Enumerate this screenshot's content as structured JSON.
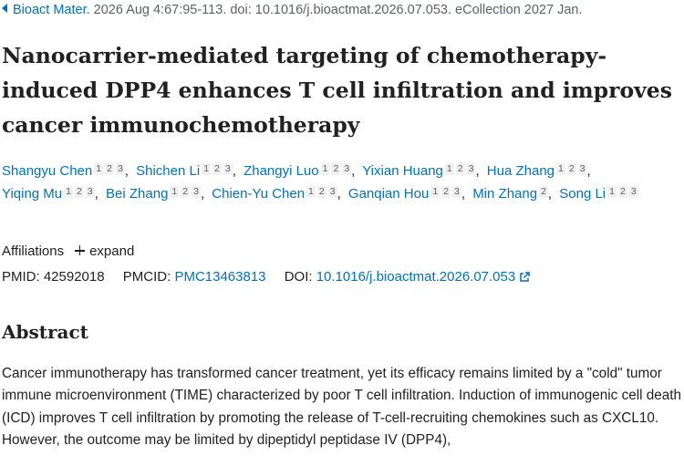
{
  "citation": {
    "journal": "Bioact Mater.",
    "details": "2026 Aug 4:67:95-113. doi: 10.1016/j.bioactmat.2026.07.053. eCollection 2027 Jan."
  },
  "title": "Nanocarrier-mediated targeting of chemotherapy-induced DPP4 enhances T cell infiltration and improves cancer immunochemotherapy",
  "authors": [
    {
      "name": "Shangyu Chen",
      "affiliations": [
        1,
        2,
        3
      ]
    },
    {
      "name": "Shichen Li",
      "affiliations": [
        1,
        2,
        3
      ]
    },
    {
      "name": "Zhangyi Luo",
      "affiliations": [
        1,
        2,
        3
      ]
    },
    {
      "name": "Yixian Huang",
      "affiliations": [
        1,
        2,
        3
      ]
    },
    {
      "name": "Hua Zhang",
      "affiliations": [
        1,
        2,
        3
      ]
    },
    {
      "name": "Yiqing Mu",
      "affiliations": [
        1,
        2,
        3
      ]
    },
    {
      "name": "Bei Zhang",
      "affiliations": [
        1,
        2,
        3
      ]
    },
    {
      "name": "Chien-Yu Chen",
      "affiliations": [
        1,
        2,
        3
      ]
    },
    {
      "name": "Ganqian Hou",
      "affiliations": [
        1,
        2,
        3
      ]
    },
    {
      "name": "Min Zhang",
      "affiliations": [
        2
      ]
    },
    {
      "name": "Song Li",
      "affiliations": [
        1,
        2,
        3
      ]
    }
  ],
  "affiliations": {
    "label": "Affiliations",
    "toggle": "expand"
  },
  "identifiers": {
    "pmid_label": "PMID:",
    "pmid": "42592018",
    "pmcid_label": "PMCID:",
    "pmcid": "PMC13463813",
    "doi_label": "DOI:",
    "doi": "10.1016/j.bioactmat.2026.07.053"
  },
  "abstract": {
    "heading": "Abstract",
    "text": "Cancer immunotherapy has transformed cancer treatment, yet its efficacy remains limited by a \"cold\" tumor immune microenvironment (TIME) characterized by poor T cell infiltration. Induction of immunogenic cell death (ICD) improves T cell infiltration by promoting the release of T-cell-recruiting chemokines such as CXCL10. However, the outcome may be limited by dipeptidyl peptidase IV (DPP4),"
  }
}
